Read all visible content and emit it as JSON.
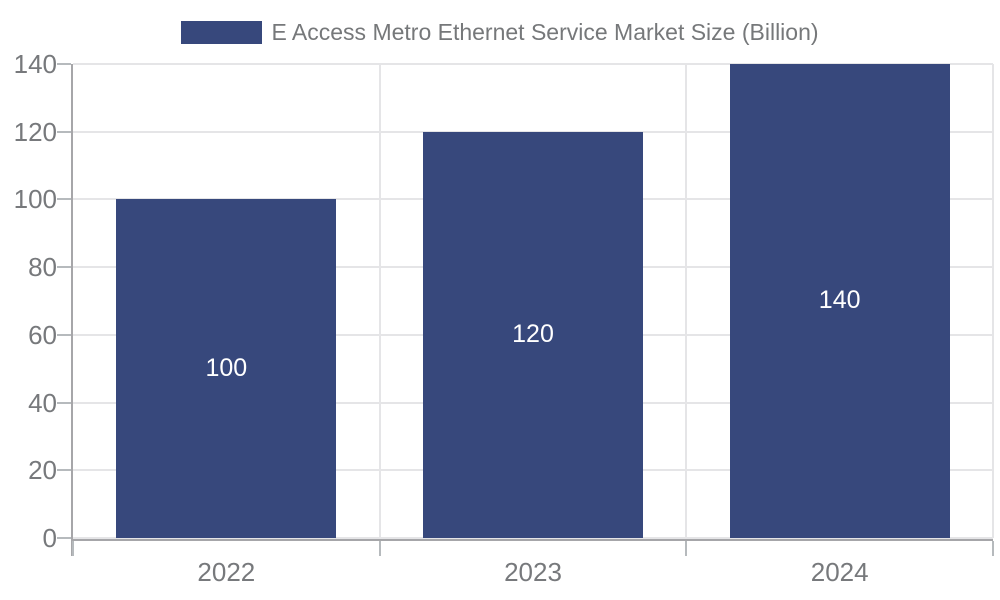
{
  "legend": {
    "label": "E Access Metro Ethernet Service Market Size (Billion)"
  },
  "chart_data": {
    "type": "bar",
    "title": "E Access Metro Ethernet Service Market Size (Billion)",
    "categories": [
      "2022",
      "2023",
      "2024"
    ],
    "values": [
      100,
      120,
      140
    ],
    "data_labels": [
      "100",
      "120",
      "140"
    ],
    "xlabel": "",
    "ylabel": "",
    "ylim": [
      0,
      140
    ],
    "yticks": [
      0,
      20,
      40,
      60,
      80,
      100,
      120,
      140
    ],
    "grid": true,
    "legend_position": "top-center",
    "colors": {
      "bar": "#37487C",
      "data_label": "#FFFFFF",
      "tick_label": "#77797C",
      "legend_text": "#76787A",
      "grid": "#E5E5E7",
      "axis": "#A6A6A9",
      "tick": "#B6BABD",
      "background": "#FFFFFF"
    }
  }
}
